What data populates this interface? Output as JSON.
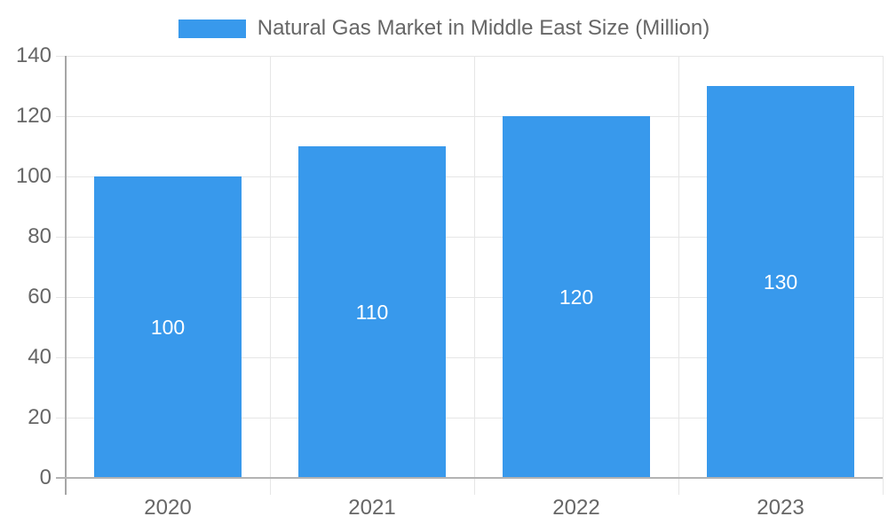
{
  "legend": {
    "label": "Natural Gas Market in Middle East Size (Million)"
  },
  "chart_data": {
    "type": "bar",
    "title": "Natural Gas Market in Middle East Size (Million)",
    "categories": [
      "2020",
      "2021",
      "2022",
      "2023"
    ],
    "values": [
      100,
      110,
      120,
      130
    ],
    "series": [
      {
        "name": "Natural Gas Market in Middle East Size (Million)",
        "values": [
          100,
          110,
          120,
          130
        ]
      }
    ],
    "xlabel": "",
    "ylabel": "",
    "ylim": [
      0,
      140
    ],
    "y_ticks": [
      0,
      20,
      40,
      60,
      80,
      100,
      120,
      140
    ],
    "grid": true,
    "legend_position": "top-center",
    "bar_label_position": "inside-center",
    "colors": {
      "bar": "#3899EC",
      "bar_label": "#ffffff",
      "axis_text": "#666666",
      "gridline": "#e6e6e6",
      "y_axis_line": "#a6a6a6",
      "x_axis_line": "#b3b3b3"
    }
  }
}
